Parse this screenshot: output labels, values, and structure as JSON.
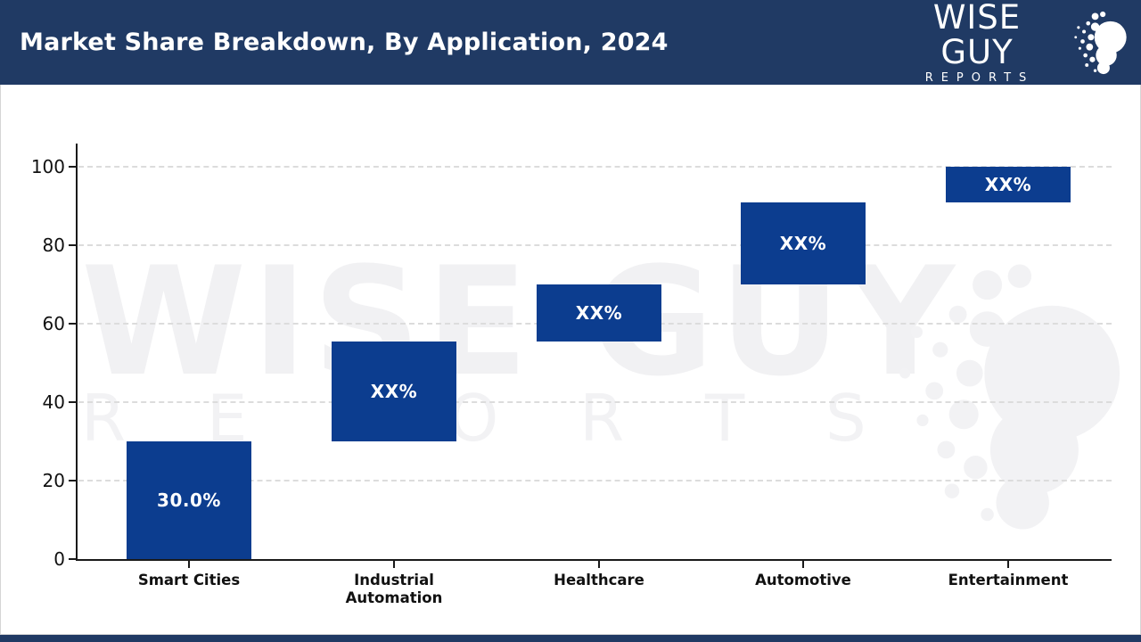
{
  "header": {
    "title": "Market Share Breakdown, By Application, 2024",
    "brand": {
      "line1": "WISE GUY",
      "line2": "REPORTS"
    }
  },
  "watermark": {
    "line1": "WISE GUY",
    "line2": "R E P O R T S"
  },
  "colors": {
    "header_bg": "#203a64",
    "bar": "#0c3d8f",
    "grid": "#dcdcdc",
    "axis": "#1a1a1a",
    "bar_label": "#ffffff",
    "watermark": "#f1f1f3"
  },
  "chart_data": {
    "type": "bar",
    "subtype": "waterfall",
    "title": "Market Share Breakdown, By Application, 2024",
    "xlabel": "",
    "ylabel": "",
    "categories": [
      "Smart Cities",
      "Industrial Automation",
      "Healthcare",
      "Automotive",
      "Entertainment"
    ],
    "segments": [
      {
        "category": "Smart Cities",
        "start": 0,
        "end": 30,
        "label": "30.0%"
      },
      {
        "category": "Industrial Automation",
        "start": 30,
        "end": 55.5,
        "label": "XX%"
      },
      {
        "category": "Healthcare",
        "start": 55.5,
        "end": 70,
        "label": "XX%"
      },
      {
        "category": "Automotive",
        "start": 70,
        "end": 91,
        "label": "XX%"
      },
      {
        "category": "Entertainment",
        "start": 91,
        "end": 100,
        "label": "XX%"
      }
    ],
    "yticks": [
      0,
      20,
      40,
      60,
      80,
      100
    ],
    "ylim": [
      0,
      106
    ],
    "grid": "horizontal-dashed",
    "legend": "none"
  }
}
